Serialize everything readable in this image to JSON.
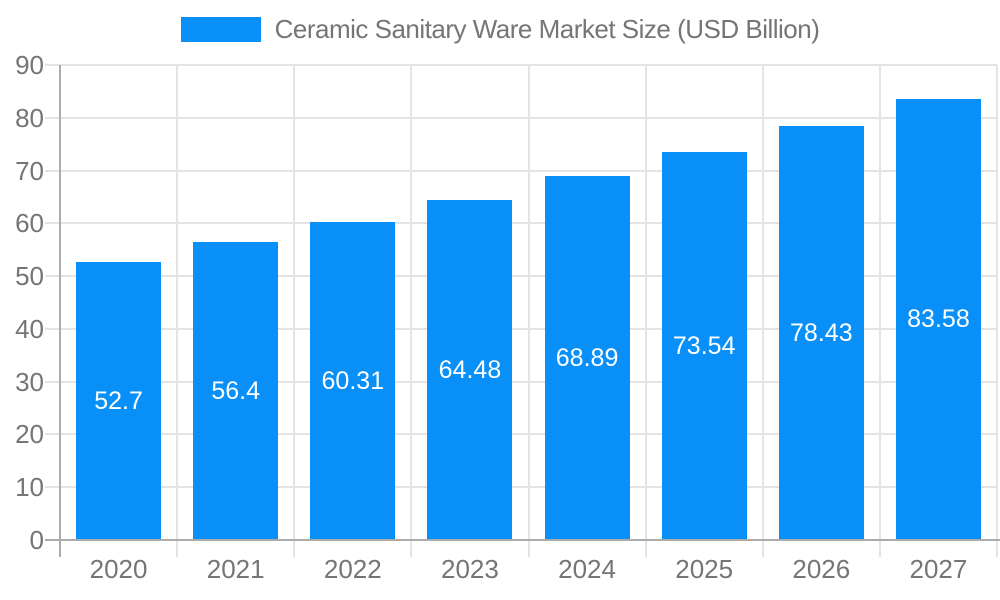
{
  "legend": {
    "label": "Ceramic Sanitary Ware Market Size (USD Billion)"
  },
  "chart_data": {
    "type": "bar",
    "title": "Ceramic Sanitary Ware Market Size (USD Billion)",
    "categories": [
      "2020",
      "2021",
      "2022",
      "2023",
      "2024",
      "2025",
      "2026",
      "2027"
    ],
    "values": [
      52.7,
      56.4,
      60.31,
      64.48,
      68.89,
      73.54,
      78.43,
      83.58
    ],
    "value_labels": [
      "52.7",
      "56.4",
      "60.31",
      "64.48",
      "68.89",
      "73.54",
      "78.43",
      "83.58"
    ],
    "xlabel": "",
    "ylabel": "",
    "ylim": [
      0,
      90
    ],
    "ytick_step": 10,
    "ytick_labels": [
      "0",
      "10",
      "20",
      "30",
      "40",
      "50",
      "60",
      "70",
      "80",
      "90"
    ],
    "grid": true,
    "legend_position": "top-center",
    "value_label_position": "inside-center",
    "colors": {
      "bar": "#0890F8",
      "value_label_text": "#ffffff",
      "axis_text": "#757575",
      "grid_line": "#E3E3E3",
      "axis_line": "#ABABAB",
      "background": "#ffffff"
    }
  }
}
